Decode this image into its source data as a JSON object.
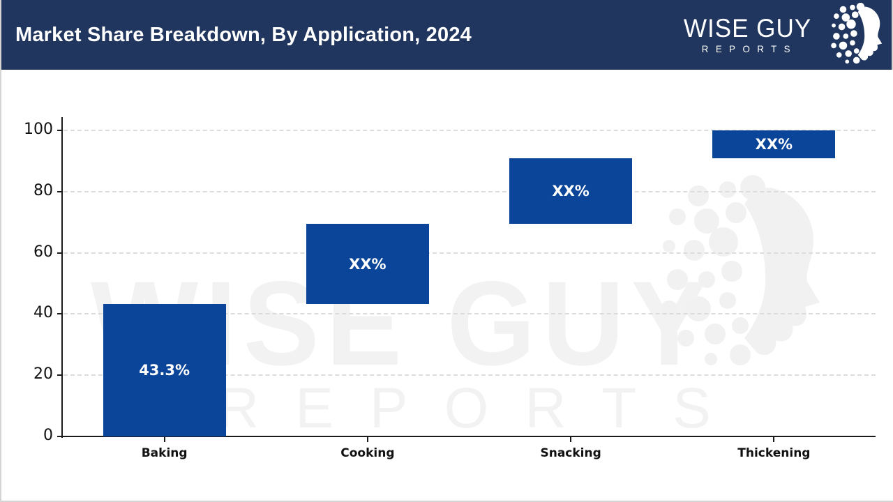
{
  "header": {
    "title": "Market Share Breakdown, By Application, 2024",
    "logo": {
      "line1": "WISE GUY",
      "line2": "REPORTS"
    }
  },
  "watermark": {
    "line1": "WISE GUY",
    "line2": "REPORTS"
  },
  "colors": {
    "header_bg": "#20365f",
    "bar": "#0b4599",
    "bar_label": "#ffffff",
    "grid": "#dcdcdc",
    "axis": "#1a1a1a",
    "watermark": "#f2f2f2"
  },
  "chart_data": {
    "type": "bar",
    "subtype": "waterfall",
    "title": "Market Share Breakdown, By Application, 2024",
    "categories": [
      "Baking",
      "Cooking",
      "Snacking",
      "Thickening"
    ],
    "segments": [
      {
        "category": "Baking",
        "start": 0.0,
        "end": 43.3,
        "label": "43.3%"
      },
      {
        "category": "Cooking",
        "start": 43.3,
        "end": 69.4,
        "label": "XX%"
      },
      {
        "category": "Snacking",
        "start": 69.4,
        "end": 91.0,
        "label": "XX%"
      },
      {
        "category": "Thickening",
        "start": 91.0,
        "end": 100.0,
        "label": "XX%"
      }
    ],
    "values_pct": [
      43.3,
      26.1,
      21.6,
      9.0
    ],
    "yticks": [
      0,
      20,
      40,
      60,
      80,
      100
    ],
    "ylim": [
      0,
      104.5
    ],
    "xlabel": "",
    "ylabel": "",
    "grid": "horizontal-dashed",
    "legend": "none"
  }
}
